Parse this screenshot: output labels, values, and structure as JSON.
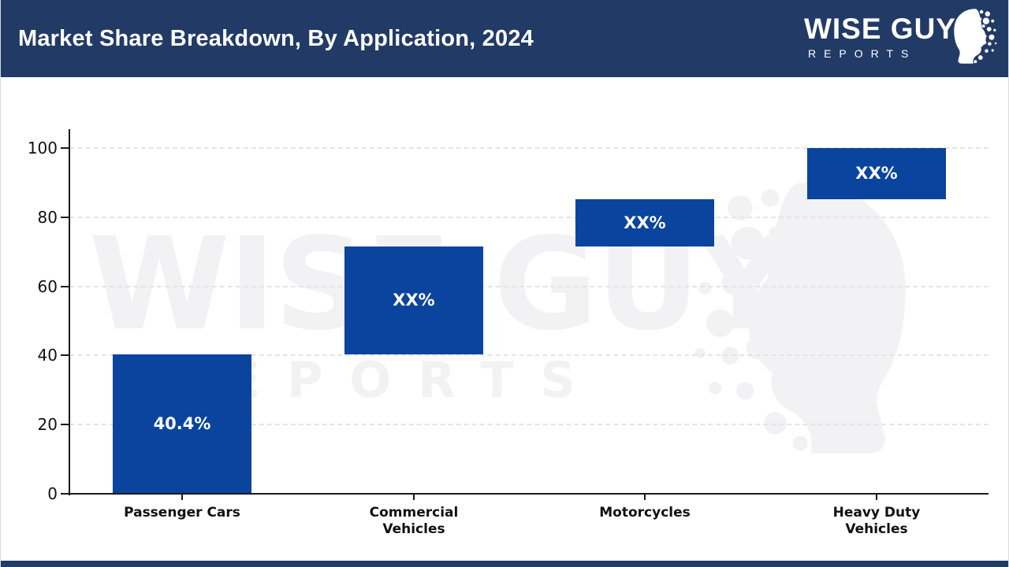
{
  "header": {
    "title": "Market Share Breakdown, By Application, 2024",
    "logo": {
      "line1": "WISE GUY",
      "line2": "REPORTS"
    }
  },
  "watermark": {
    "line1": "WISE GUY",
    "line2": "REPORTS"
  },
  "chart_data": {
    "type": "bar",
    "subtype": "waterfall",
    "title": "Market Share Breakdown, By Application, 2024",
    "categories": [
      "Passenger Cars",
      "Commercial Vehicles",
      "Motorcycles",
      "Heavy Duty Vehicles"
    ],
    "categories_lines": [
      [
        "Passenger Cars"
      ],
      [
        "Commercial",
        "Vehicles"
      ],
      [
        "Motorcycles"
      ],
      [
        "Heavy Duty",
        "Vehicles"
      ]
    ],
    "segments": [
      {
        "start": 0,
        "end": 40.4,
        "label": "40.4%"
      },
      {
        "start": 40.4,
        "end": 71.6,
        "label": "XX%"
      },
      {
        "start": 71.6,
        "end": 85.3,
        "label": "XX%"
      },
      {
        "start": 85.3,
        "end": 100,
        "label": "XX%"
      }
    ],
    "bar_labels": [
      "40.4%",
      "XX%",
      "XX%",
      "XX%"
    ],
    "ylim": [
      0,
      100
    ],
    "yticks": [
      0,
      20,
      40,
      60,
      80,
      100
    ],
    "grid": "horizontal-dashed",
    "legend": null
  },
  "colors": {
    "header_bg": "#213A66",
    "footer_bg": "#213A66",
    "title_text": "#FFFFFF",
    "bar": "#0A449E",
    "bar_label": "#FFFFFF",
    "grid": "#E4E4E4",
    "axis": "#1A1A1A",
    "watermark": "#F2F2F4",
    "border": "#DCDCDC"
  }
}
